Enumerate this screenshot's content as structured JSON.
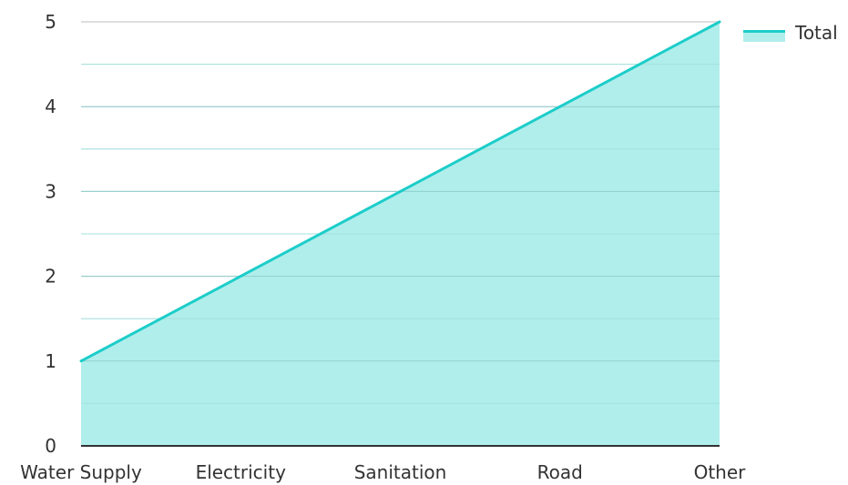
{
  "chart_data": {
    "type": "area",
    "categories": [
      "Water Supply",
      "Electricity",
      "Sanitation",
      "Road",
      "Other"
    ],
    "series": [
      {
        "name": "Total",
        "values": [
          1,
          2,
          3,
          4,
          5
        ]
      }
    ],
    "ylim": [
      0,
      5
    ],
    "yticks": [
      "0",
      "1",
      "2",
      "3",
      "4",
      "5"
    ],
    "grid": true,
    "legend_position": "top-right",
    "colors": {
      "line": "#1ccdc9",
      "fill": "#b0eeec",
      "grid_major": "#bdbdbd",
      "grid_minor": "#e2e2e2",
      "axis": "#333333"
    }
  }
}
